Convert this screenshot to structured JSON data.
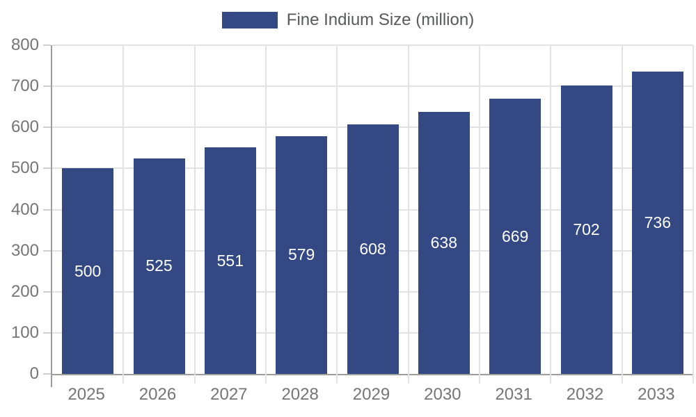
{
  "chart_data": {
    "type": "bar",
    "title": "",
    "categories": [
      "2025",
      "2026",
      "2027",
      "2028",
      "2029",
      "2030",
      "2031",
      "2032",
      "2033"
    ],
    "series": [
      {
        "name": "Fine Indium Size (million)",
        "values": [
          500,
          525,
          551,
          579,
          608,
          638,
          669,
          702,
          736
        ]
      }
    ],
    "xlabel": "",
    "ylabel": "",
    "ylim": [
      0,
      800
    ],
    "y_ticks": [
      0,
      100,
      200,
      300,
      400,
      500,
      600,
      700,
      800
    ],
    "grid": true,
    "legend_position": "top-center",
    "bar_labels_shown": true,
    "bar_label_placement": "inside-center",
    "colors": {
      "bar": "#344984",
      "bar_label_text": "#ffffff",
      "gridline": "#e2e2e2",
      "axis_line": "#9e9e9e",
      "tick_mark": "#cfcfcf",
      "axis_text": "#757575",
      "legend_text": "#58595b",
      "background": "#ffffff"
    }
  }
}
